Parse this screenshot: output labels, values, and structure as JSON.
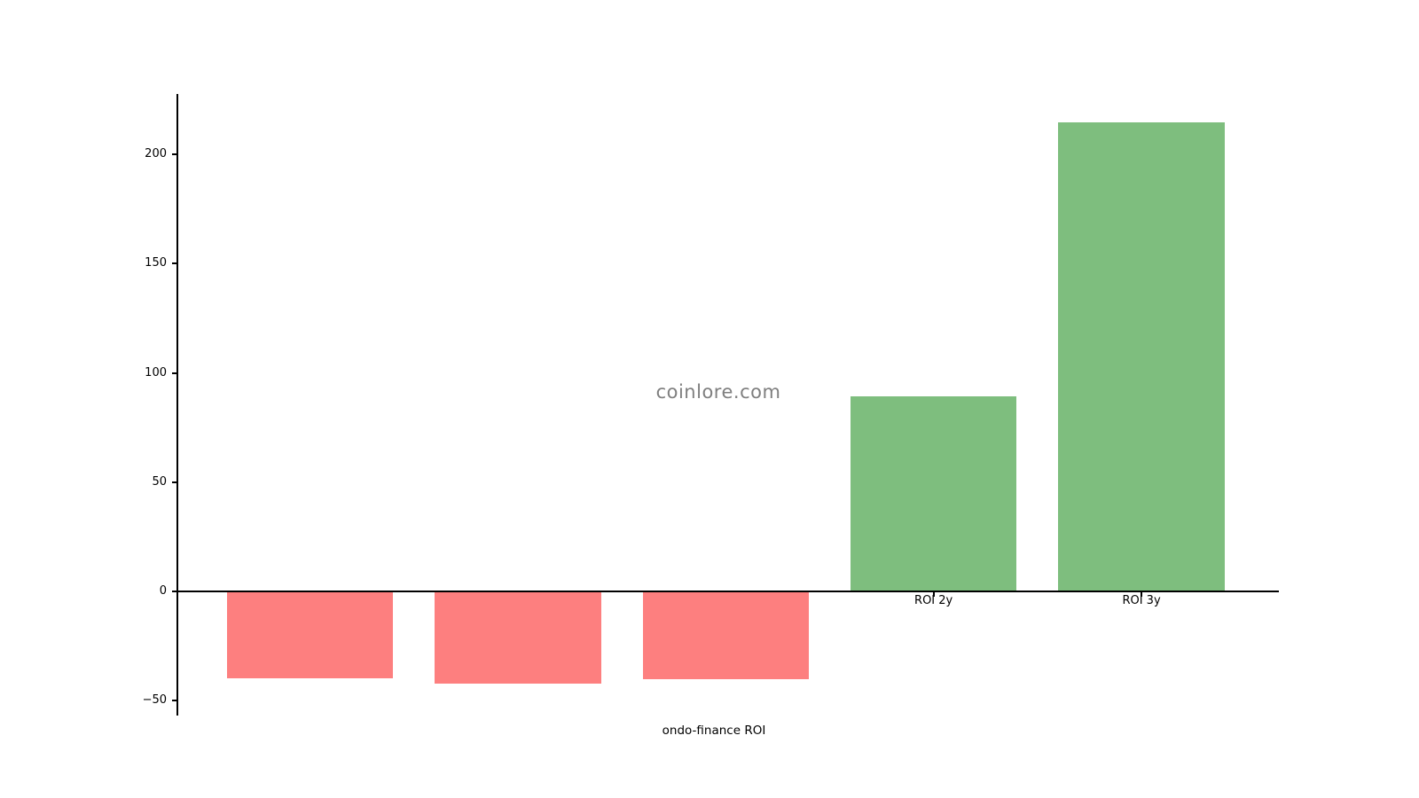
{
  "watermark": {
    "text": "coinlore.com",
    "color": "#7f7f7f"
  },
  "chart_data": {
    "type": "bar",
    "categories": [
      "",
      "",
      "",
      "ROI 2y",
      "ROI 3y"
    ],
    "values": [
      -39.4,
      -41.8,
      -39.8,
      89.3,
      214.6
    ],
    "title": "",
    "xlabel": "ondo-finance ROI",
    "ylabel": "",
    "ylim": [
      -57,
      228
    ],
    "y_ticks": [
      -50,
      0,
      50,
      100,
      150,
      200
    ],
    "grid": false,
    "legend": false,
    "axis_color": "#000000",
    "colors": {
      "positive": "#7ebe7e",
      "negative": "#fd7f7f"
    },
    "notes": "x tick labels of the three negative bars are hidden behind the bars; zero line drawn across full plot width"
  }
}
